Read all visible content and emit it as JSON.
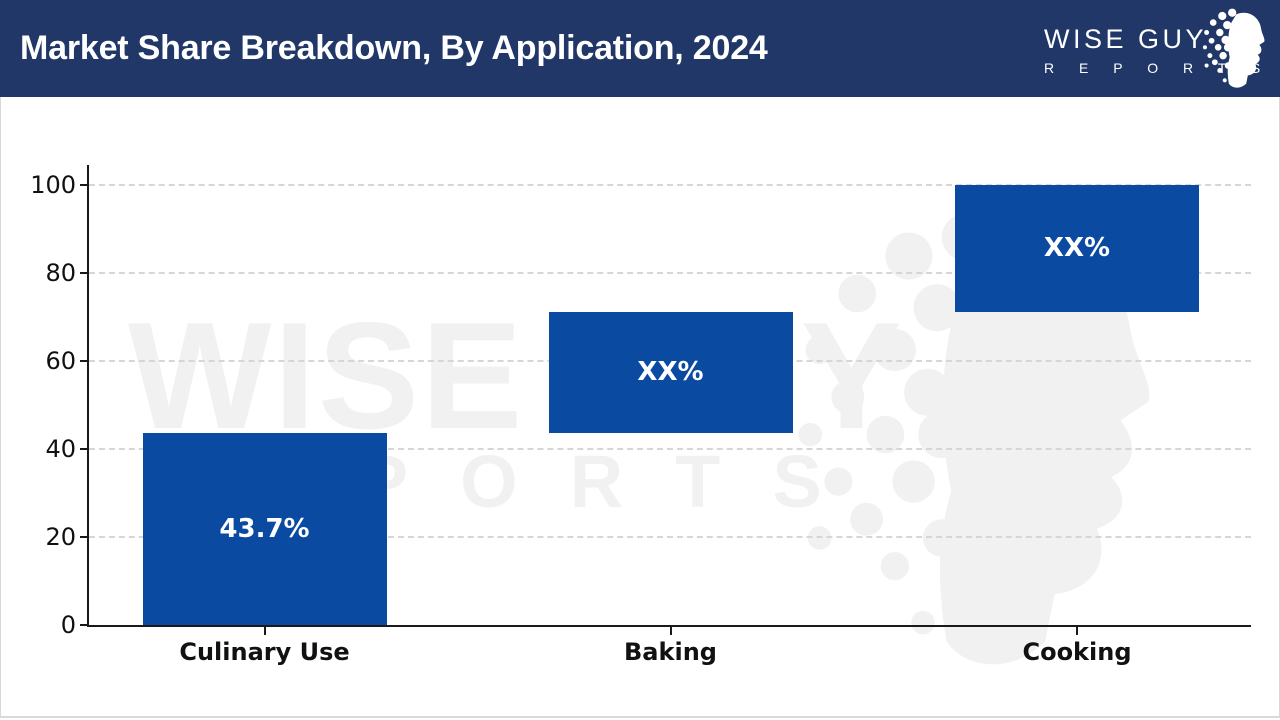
{
  "header": {
    "title": "Market Share Breakdown, By Application, 2024",
    "logo": {
      "line1": "WISE GUY",
      "line2": "R E P O R T S"
    }
  },
  "watermark": {
    "line1": "WISE GUY",
    "line2": "REPORTS"
  },
  "chart_data": {
    "type": "bar",
    "subtype": "floating-segment-bars",
    "title": "Market Share Breakdown, By Application, 2024",
    "categories": [
      "Culinary Use",
      "Baking",
      "Cooking"
    ],
    "segments": [
      {
        "category": "Culinary Use",
        "start": 0,
        "end": 43.7,
        "label": "43.7%"
      },
      {
        "category": "Baking",
        "start": 43.7,
        "end": 71.2,
        "label": "XX%"
      },
      {
        "category": "Cooking",
        "start": 71.2,
        "end": 100,
        "label": "XX%"
      }
    ],
    "xlabel": "",
    "ylabel": "",
    "ylim": [
      0,
      100
    ],
    "yticks": [
      0,
      20,
      40,
      60,
      80,
      100
    ],
    "grid": "horizontal-dashed",
    "legend": "none"
  },
  "colors": {
    "header_bg": "#203767",
    "bar": "#0b4aa1",
    "bar_label": "#ffffff",
    "grid": "#d6d6d6",
    "axis": "#1a1a1a",
    "tick_text": "#111111",
    "watermark": "#f1f1f1"
  }
}
